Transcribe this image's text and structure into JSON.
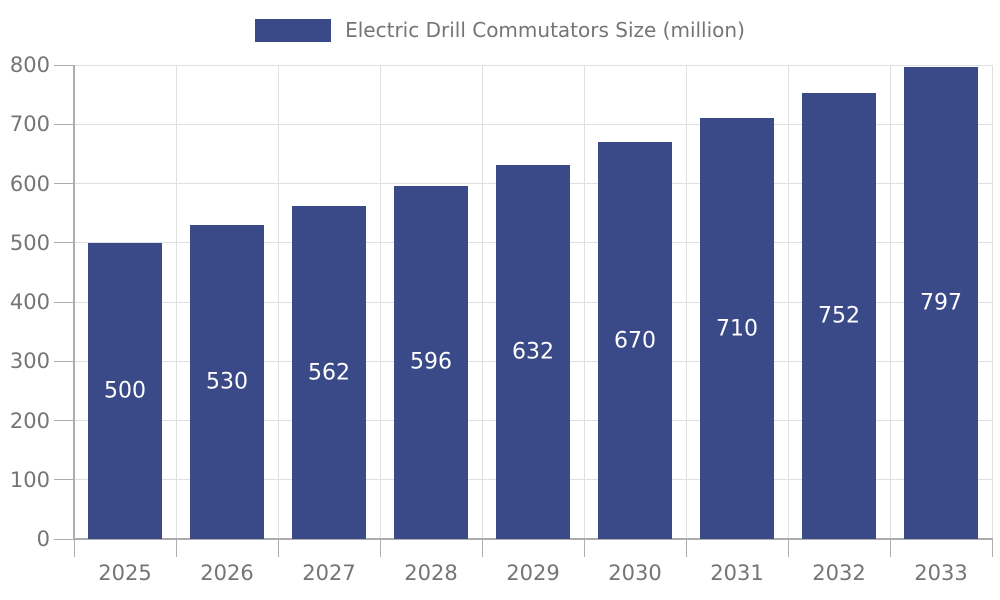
{
  "legend": {
    "label": "Electric Drill Commutators Size (million)"
  },
  "chart_data": {
    "type": "bar",
    "title": "Electric Drill Commutators Size (million)",
    "categories": [
      "2025",
      "2026",
      "2027",
      "2028",
      "2029",
      "2030",
      "2031",
      "2032",
      "2033"
    ],
    "values": [
      500,
      530,
      562,
      596,
      632,
      670,
      710,
      752,
      797
    ],
    "xlabel": "",
    "ylabel": "",
    "ylim": [
      0,
      800
    ],
    "ytick_step": 100,
    "yticks": [
      0,
      100,
      200,
      300,
      400,
      500,
      600,
      700,
      800
    ],
    "grid": true,
    "legend_position": "top-center",
    "value_label_position": "inside-center"
  },
  "colors": {
    "bar": "#3a4987",
    "value_label": "#ffffff",
    "axis_text": "#757575",
    "grid_line": "#e0e0e0",
    "axis_line": "#adadad",
    "background": "#ffffff"
  }
}
